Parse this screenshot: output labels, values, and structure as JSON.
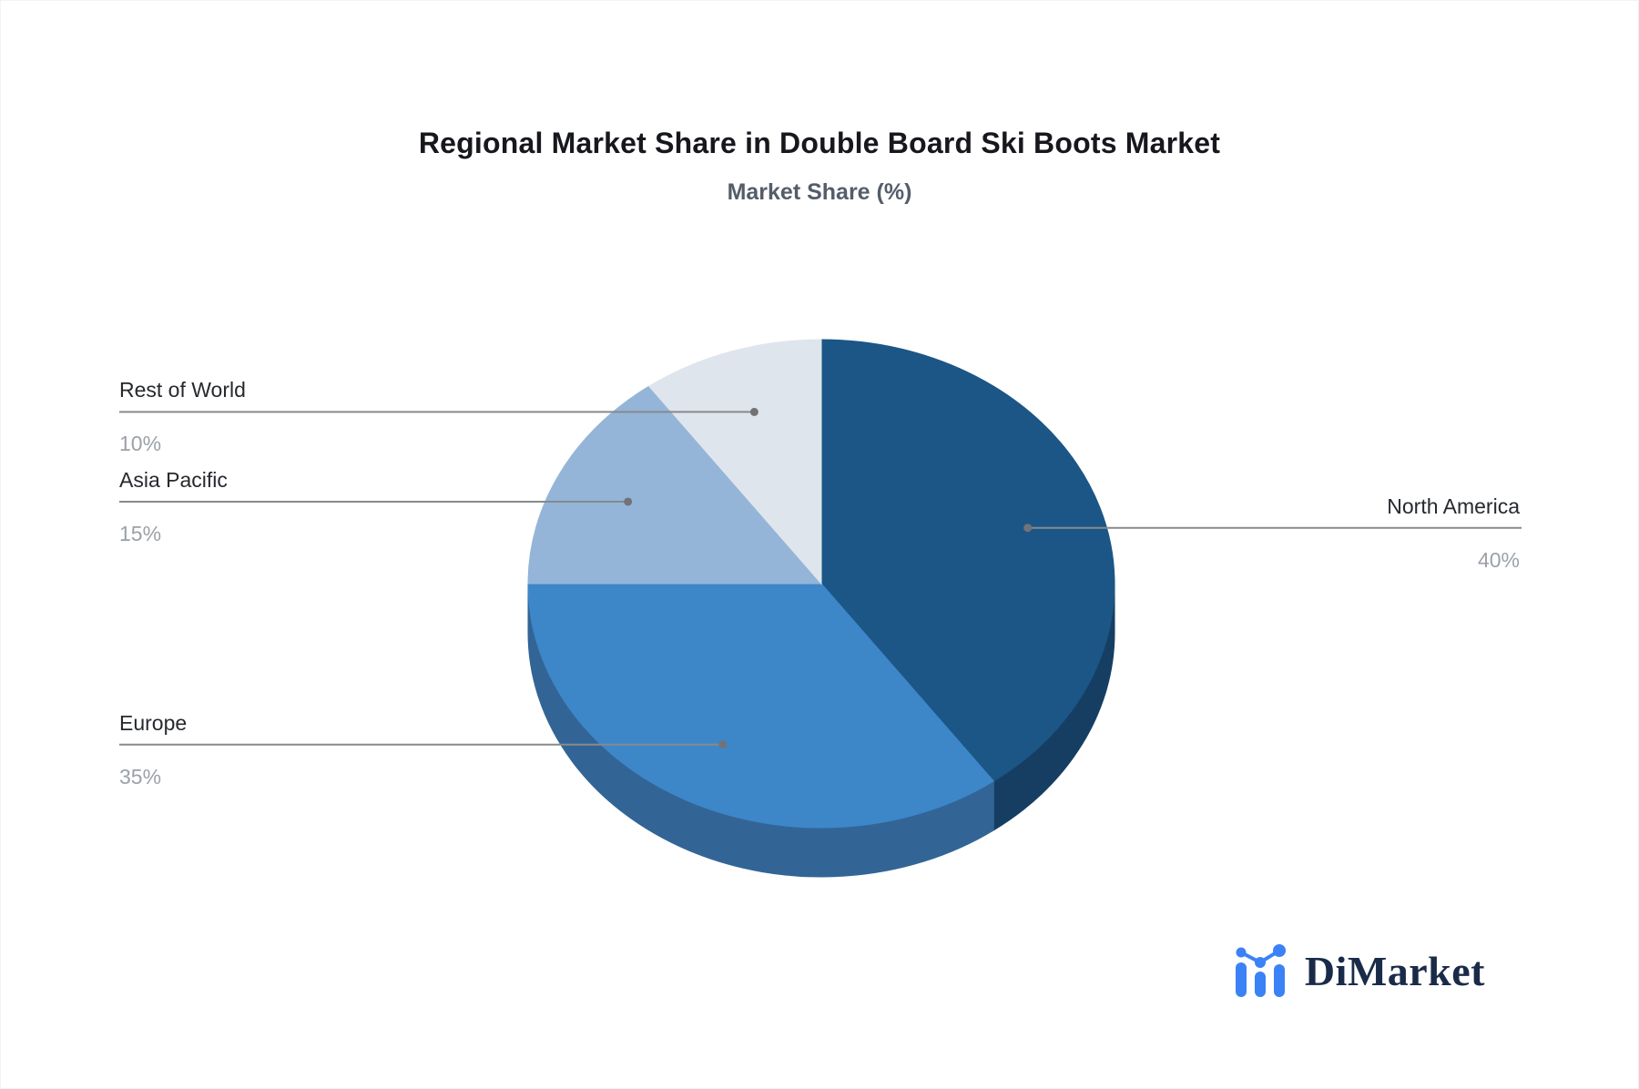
{
  "header": {
    "title": "Regional Market Share in Double Board Ski Boots Market",
    "subtitle": "Market Share (%)"
  },
  "chart_data": {
    "type": "pie",
    "effect": "3d",
    "title": "Regional Market Share in Double Board Ski Boots Market",
    "value_axis_label": "Market Share (%)",
    "unit": "%",
    "start_angle_deg": 0,
    "direction": "clockwise",
    "slices": [
      {
        "label": "North America",
        "value": 40,
        "pct_label": "40%",
        "color": "#1B5687",
        "side_color": "#163E63",
        "label_side": "right"
      },
      {
        "label": "Europe",
        "value": 35,
        "pct_label": "35%",
        "color": "#3D87C9",
        "side_color": "#326596",
        "label_side": "left"
      },
      {
        "label": "Asia Pacific",
        "value": 15,
        "pct_label": "15%",
        "color": "#94B5D8",
        "side_color": "#7FA3C6",
        "label_side": "left"
      },
      {
        "label": "Rest of World",
        "value": 10,
        "pct_label": "10%",
        "color": "#DFE5EC",
        "side_color": "#C4CDD9",
        "label_side": "left"
      }
    ],
    "legend": "none",
    "label_style": {
      "name_color": "#26292E",
      "pct_color": "#9BA1A8"
    },
    "leader_line_color": "#87898C",
    "leader_dot_color": "#717377"
  },
  "footer": {
    "brand": "DiMarket",
    "logo_color": "#3B82F6",
    "brand_color": "#1A2B49"
  }
}
